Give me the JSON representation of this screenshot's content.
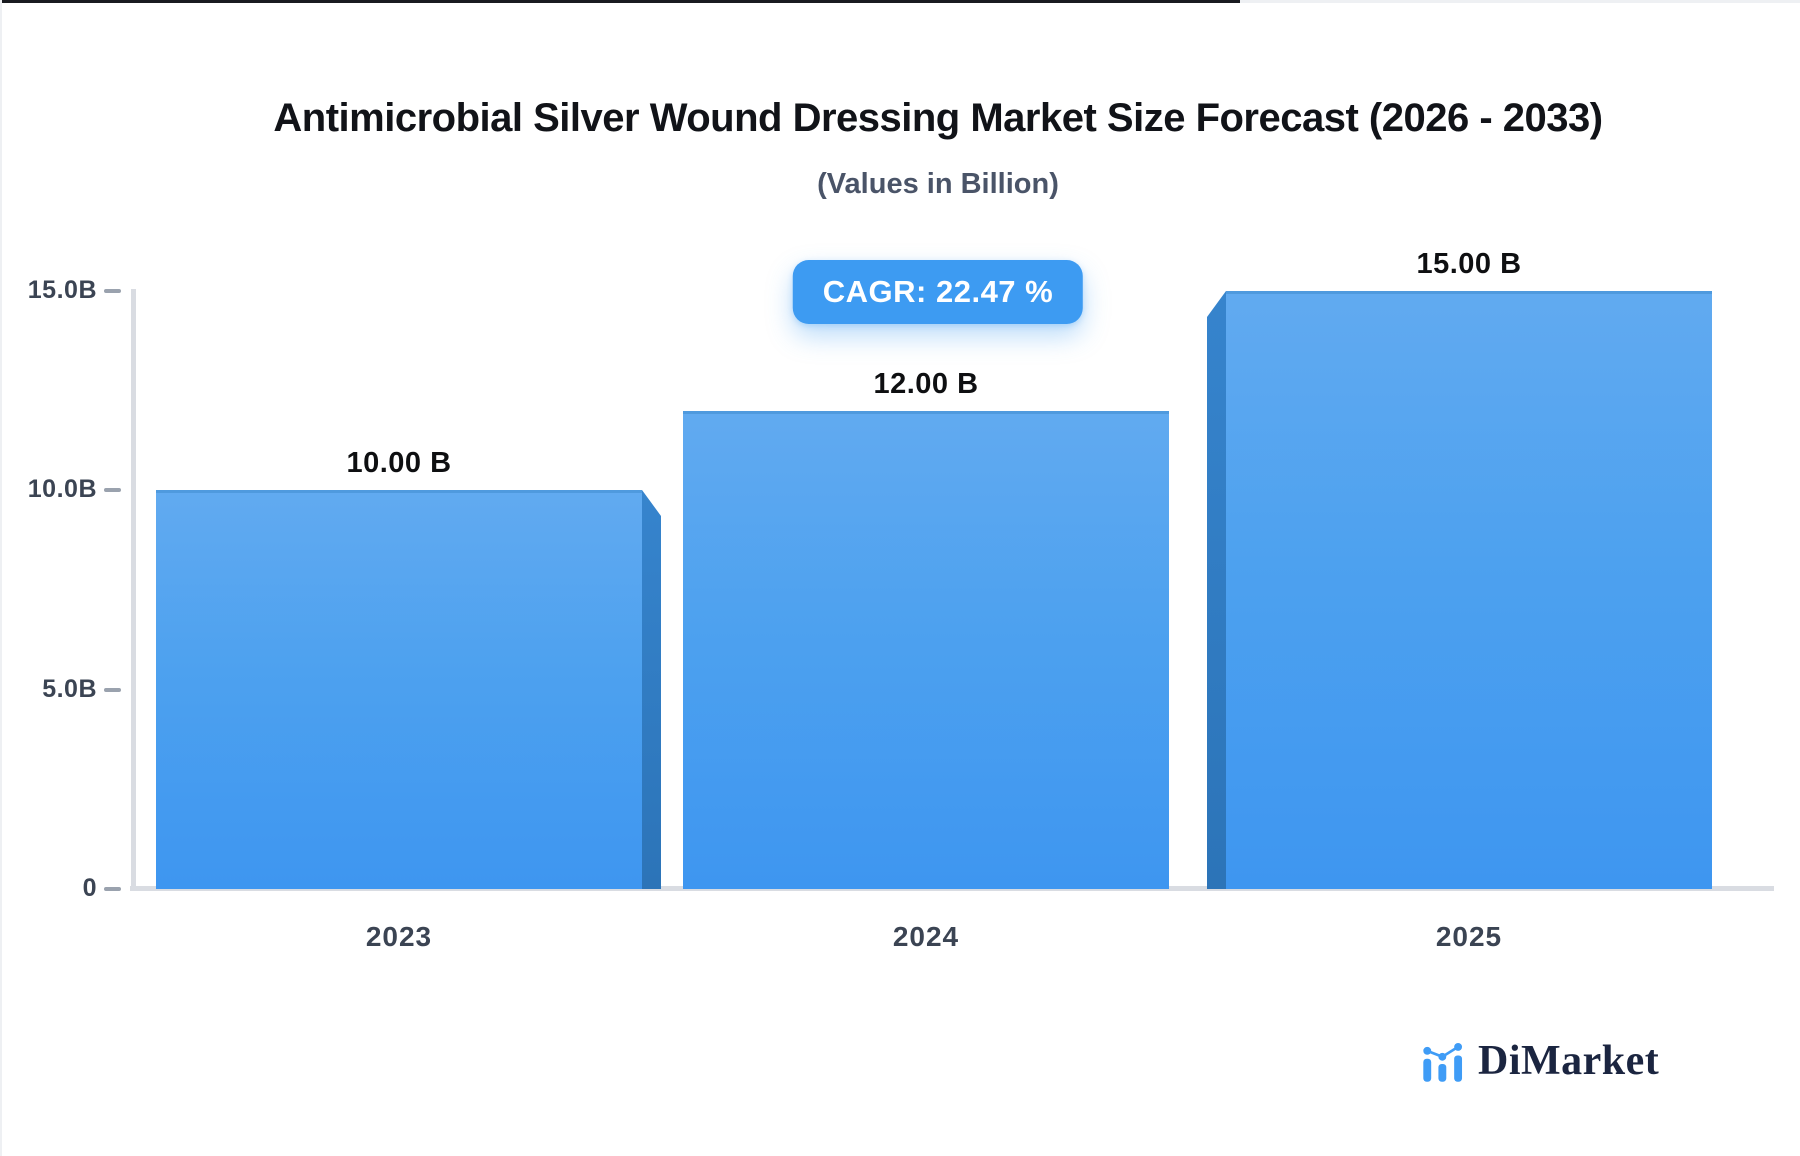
{
  "page": {
    "title": "Antimicrobial Silver Wound Dressing Market Size Forecast (2026 - 2033)",
    "subtitle": "(Values in Billion)",
    "cagr_badge": "CAGR: 22.47 %"
  },
  "branding": {
    "logo_text": "DiMarket",
    "logo_icon": "bar-chart-trend-icon"
  },
  "colors": {
    "accent_blue": "#3d9bf2",
    "bar_fill_top": "#61aaf0",
    "bar_fill_bottom": "#3e96f0",
    "bar_side_shade": "#2e7abd",
    "axis_gray": "#d9dce2",
    "tick_gray": "#9aa2ae",
    "label_slate": "#3b4453",
    "logo_navy": "#1b2540"
  },
  "chart_data": {
    "type": "bar",
    "title": "Antimicrobial Silver Wound Dressing Market Size Forecast (2026 - 2033)",
    "subtitle": "(Values in Billion)",
    "categories": [
      "2023",
      "2024",
      "2025"
    ],
    "values": [
      10.0,
      12.0,
      15.0
    ],
    "value_labels": [
      "10.00 B",
      "12.00 B",
      "15.00 B"
    ],
    "cagr_percent": 22.47,
    "xlabel": "",
    "ylabel": "",
    "ylim": [
      0,
      15
    ],
    "yticks": {
      "values": [
        0,
        5,
        10,
        15
      ],
      "labels": [
        "0",
        "5.0B",
        "10.0B",
        "15.0B"
      ]
    },
    "grid": false,
    "legend": "none"
  }
}
